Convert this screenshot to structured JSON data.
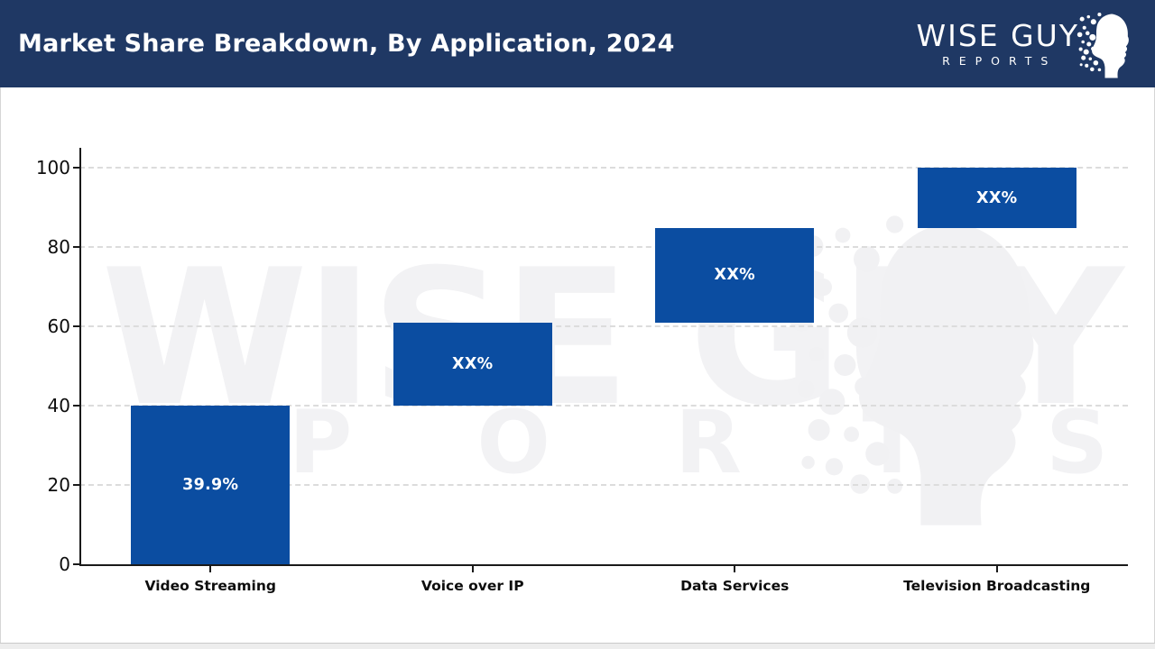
{
  "header": {
    "title": "Market Share Breakdown, By Application, 2024",
    "logo": {
      "line1": "WISE GUY",
      "line2": "REPORTS"
    }
  },
  "watermark": {
    "line1": "WISE GUY",
    "line2": "PORTS"
  },
  "chart_data": {
    "type": "bar",
    "subtype": "floating-waterfall-percent",
    "title": "Market Share Breakdown, By Application, 2024",
    "categories": [
      "Video Streaming",
      "Voice over IP",
      "Data Services",
      "Television Broadcasting"
    ],
    "bars": [
      {
        "category": "Video Streaming",
        "start": 0,
        "end": 39.9,
        "value": 39.9,
        "label": "39.9%"
      },
      {
        "category": "Voice over IP",
        "start": 39.9,
        "end": 61.0,
        "value": 21.1,
        "label": "XX%"
      },
      {
        "category": "Data Services",
        "start": 61.0,
        "end": 84.7,
        "value": 23.7,
        "label": "XX%"
      },
      {
        "category": "Television Broadcasting",
        "start": 84.7,
        "end": 100,
        "value": 15.3,
        "label": "XX%"
      }
    ],
    "yticks": [
      0,
      20,
      40,
      60,
      80,
      100
    ],
    "ylim": [
      0,
      100
    ],
    "xlabel": "",
    "ylabel": "",
    "grid": "dashed-horizontal",
    "legend": "none",
    "bar_color": "#0b4da1",
    "bar_label_color": "#ffffff",
    "header_color": "#1f3864"
  }
}
